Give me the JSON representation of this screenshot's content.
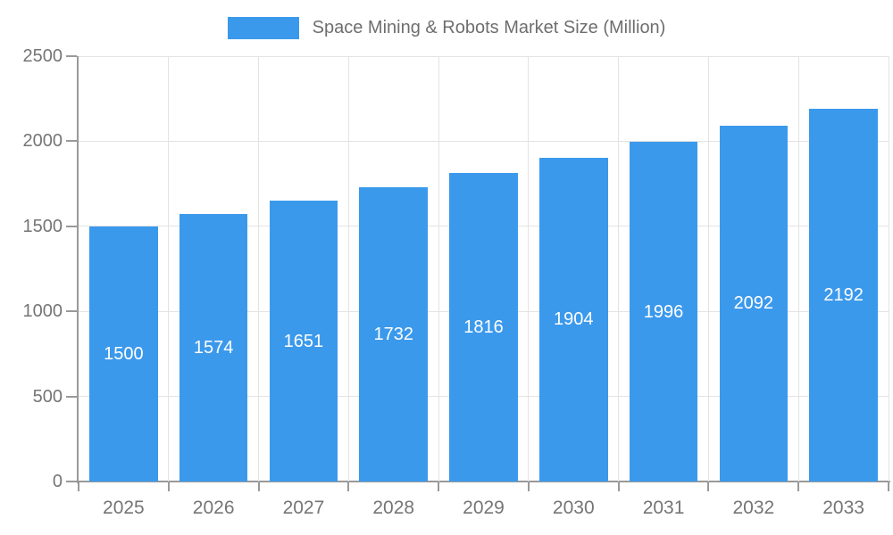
{
  "chart_data": {
    "type": "bar",
    "title": "Space Mining & Robots Market Size (Million)",
    "categories": [
      "2025",
      "2026",
      "2027",
      "2028",
      "2029",
      "2030",
      "2031",
      "2032",
      "2033"
    ],
    "values": [
      1500,
      1574,
      1651,
      1732,
      1816,
      1904,
      1996,
      2092,
      2192
    ],
    "xlabel": "",
    "ylabel": "",
    "ylim": [
      0,
      2500
    ],
    "yticks": [
      0,
      500,
      1000,
      1500,
      2000,
      2500
    ],
    "grid": true,
    "legend_position": "top",
    "bar_labels_inside": true
  },
  "legend": {
    "label": "Space Mining & Robots Market Size (Million)"
  },
  "colors": {
    "bar": "#3B99EC",
    "bar_label": "#ffffff",
    "axis_line": "#999999",
    "grid_line": "#e3e3e3",
    "axis_text": "#757575",
    "title_text": "#6e6e6e",
    "background": "#ffffff"
  }
}
